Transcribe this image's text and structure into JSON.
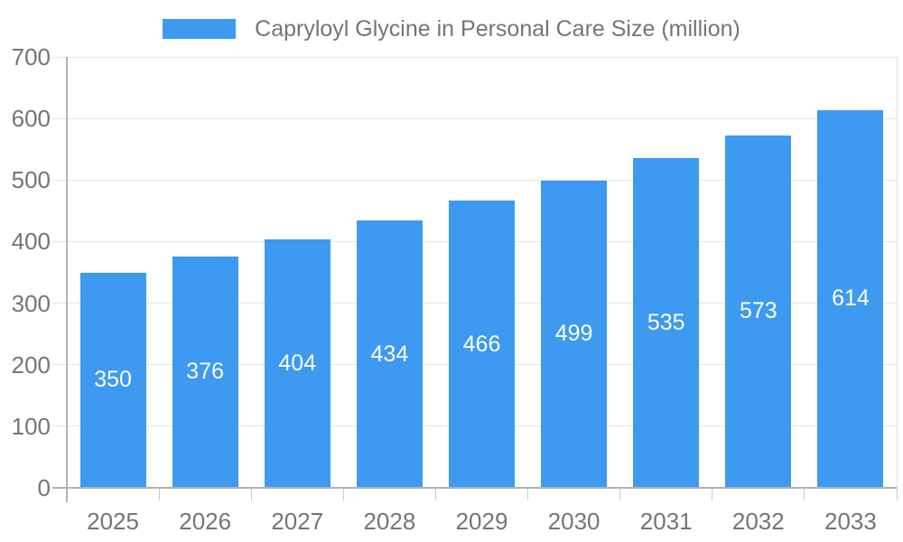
{
  "legend": {
    "label": "Capryloyl Glycine in Personal Care Size (million)",
    "swatch_color": "#3d9af0"
  },
  "chart_data": {
    "type": "bar",
    "title": "Capryloyl Glycine in Personal Care Size (million)",
    "categories": [
      "2025",
      "2026",
      "2027",
      "2028",
      "2029",
      "2030",
      "2031",
      "2032",
      "2033"
    ],
    "values": [
      350,
      376,
      404,
      434,
      466,
      499,
      535,
      573,
      614
    ],
    "series_name": "Capryloyl Glycine in Personal Care Size (million)",
    "xlabel": "",
    "ylabel": "",
    "ylim": [
      0,
      700
    ],
    "yticks": [
      0,
      100,
      200,
      300,
      400,
      500,
      600,
      700
    ],
    "grid": true,
    "legend_position": "top",
    "bar_color": "#3d9af0",
    "value_label_color": "#ffffff",
    "axis_text_color": "#757575",
    "gridline_color": "#e6e6e6",
    "axis_line_color": "#b3b3b3"
  }
}
